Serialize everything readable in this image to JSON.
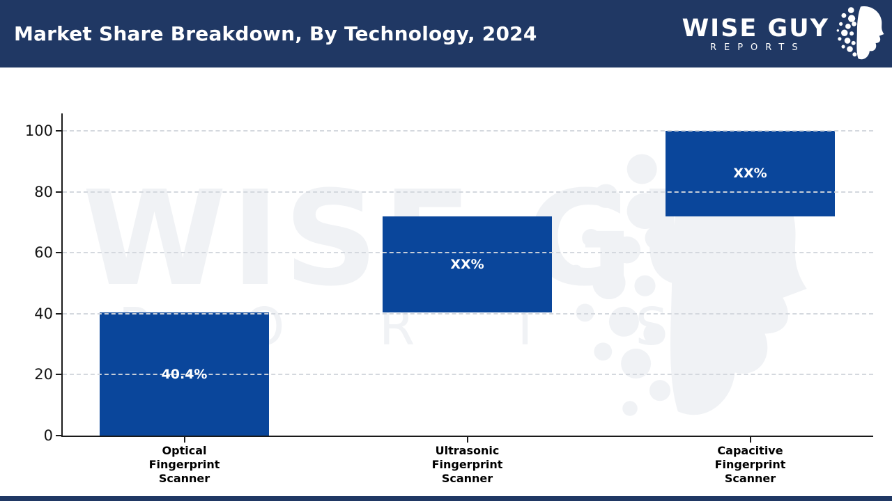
{
  "header": {
    "title": "Market Share Breakdown, By Technology, 2024",
    "bg_color": "#203864",
    "logo": {
      "line1": "WISE GUY",
      "line2": "REPORTS"
    }
  },
  "watermark": {
    "line1": "WISE GU",
    "line2": "P O R T S"
  },
  "footer": {
    "bar_color": "#203864"
  },
  "chart_data": {
    "type": "bar",
    "variant": "waterfall",
    "title": "Market Share Breakdown, By Technology, 2024",
    "categories": [
      [
        "Optical",
        "Fingerprint",
        "Scanner"
      ],
      [
        "Ultrasonic",
        "Fingerprint",
        "Scanner"
      ],
      [
        "Capacitive",
        "Fingerprint",
        "Scanner"
      ]
    ],
    "segments": [
      {
        "start": 0,
        "end": 40.4,
        "label": "40.4%"
      },
      {
        "start": 40.4,
        "end": 72,
        "label": "XX%"
      },
      {
        "start": 72,
        "end": 100,
        "label": "XX%"
      }
    ],
    "ylim": [
      0,
      100
    ],
    "yticks": [
      0,
      20,
      40,
      60,
      80,
      100
    ],
    "xlabel": "",
    "ylabel": "",
    "grid": "horizontal-dashed-over-bars",
    "legend": "none",
    "bar_color": "#0a469b",
    "bar_label_color": "#ffffff",
    "axis_color": "#1a1a1a",
    "gridline_color": "#d6d9de"
  }
}
